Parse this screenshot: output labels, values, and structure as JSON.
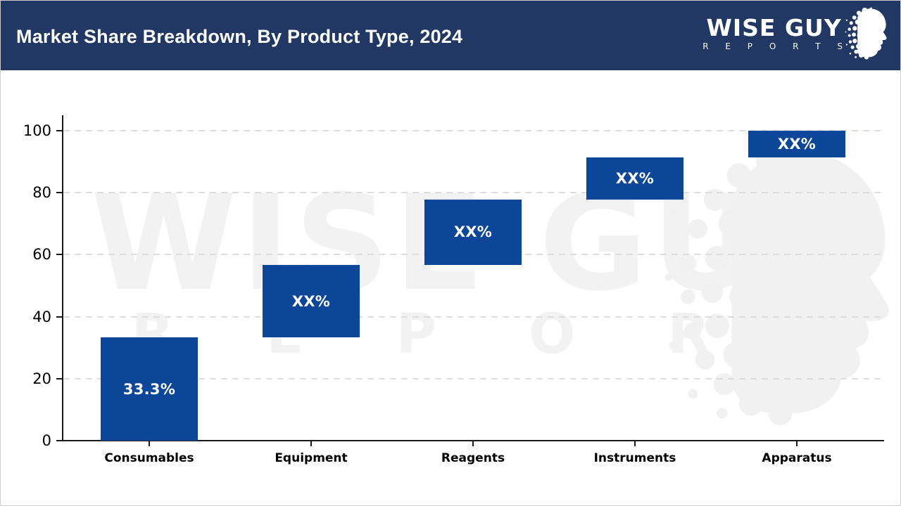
{
  "header": {
    "title": "Market Share Breakdown, By Product Type, 2024",
    "logo": {
      "line1": "WISE GUY",
      "line2": "R E P O R T S"
    }
  },
  "watermark": {
    "line1": "WISE GUY",
    "line2": "R E P O R T S"
  },
  "colors": {
    "header_bg": "#213864",
    "bar": "#0b4699",
    "bar_label": "#ffffff",
    "axis": "#1a1a1a",
    "gridline": "#dedede",
    "watermark": "#f2f2f2"
  },
  "chart_data": {
    "type": "bar",
    "subtype": "waterfall",
    "title": "Market Share Breakdown, By Product Type, 2024",
    "categories": [
      "Consumables",
      "Equipment",
      "Reagents",
      "Instruments",
      "Apparatus"
    ],
    "segments": [
      {
        "category": "Consumables",
        "start": 0,
        "end": 33.3,
        "label": "33.3%"
      },
      {
        "category": "Equipment",
        "start": 33.3,
        "end": 56.7,
        "label": "XX%"
      },
      {
        "category": "Reagents",
        "start": 56.7,
        "end": 77.8,
        "label": "XX%"
      },
      {
        "category": "Instruments",
        "start": 77.8,
        "end": 91.4,
        "label": "XX%"
      },
      {
        "category": "Apparatus",
        "start": 91.4,
        "end": 100,
        "label": "XX%"
      }
    ],
    "y_ticks": [
      0,
      20,
      40,
      60,
      80,
      100
    ],
    "ylim": [
      0,
      105
    ],
    "xlabel": "",
    "ylabel": "",
    "grid": "dashed-horizontal",
    "legend": "none"
  }
}
